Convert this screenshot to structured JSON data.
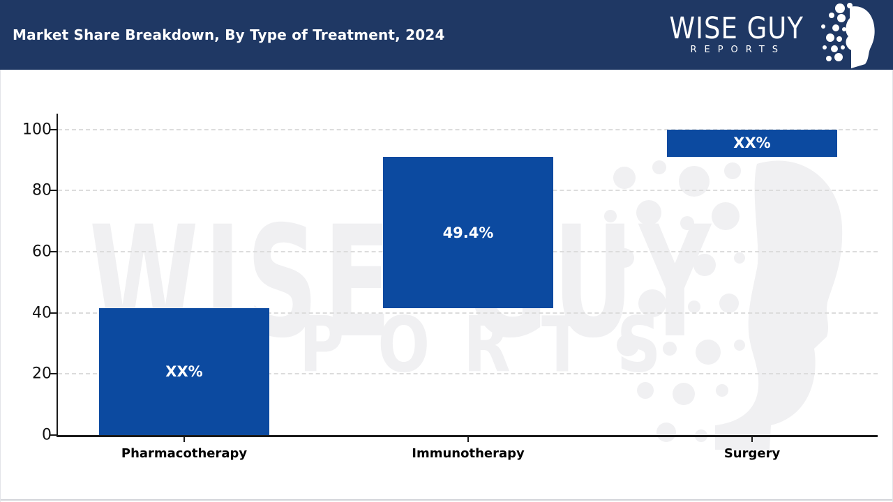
{
  "header": {
    "title": "Market Share Breakdown, By Type of Treatment, 2024",
    "brand": {
      "name": "WISE GUY",
      "sub": "REPORTS"
    }
  },
  "watermark": {
    "row1": "WISE GUY",
    "row2": "REPORTS"
  },
  "chart_data": {
    "type": "bar",
    "subtype": "waterfall-floating-bars",
    "title": "Market Share Breakdown, By Type of Treatment, 2024",
    "categories": [
      "Pharmacotherapy",
      "Immunotherapy",
      "Surgery"
    ],
    "bars": [
      {
        "category": "Pharmacotherapy",
        "start": 0,
        "end": 41.5,
        "value": 41.5,
        "label": "XX%"
      },
      {
        "category": "Immunotherapy",
        "start": 41.5,
        "end": 90.9,
        "value": 49.4,
        "label": "49.4%"
      },
      {
        "category": "Surgery",
        "start": 90.9,
        "end": 100,
        "value": 9.1,
        "label": "XX%"
      }
    ],
    "xlabel": "",
    "ylabel": "",
    "ylim": [
      0,
      100
    ],
    "yticks": [
      0,
      20,
      40,
      60,
      80,
      100
    ],
    "grid": "horizontal-dashed",
    "legend": "none",
    "bar_color": "#0c4aa0",
    "bar_label_color": "#ffffff",
    "header_color": "#1f3864"
  }
}
